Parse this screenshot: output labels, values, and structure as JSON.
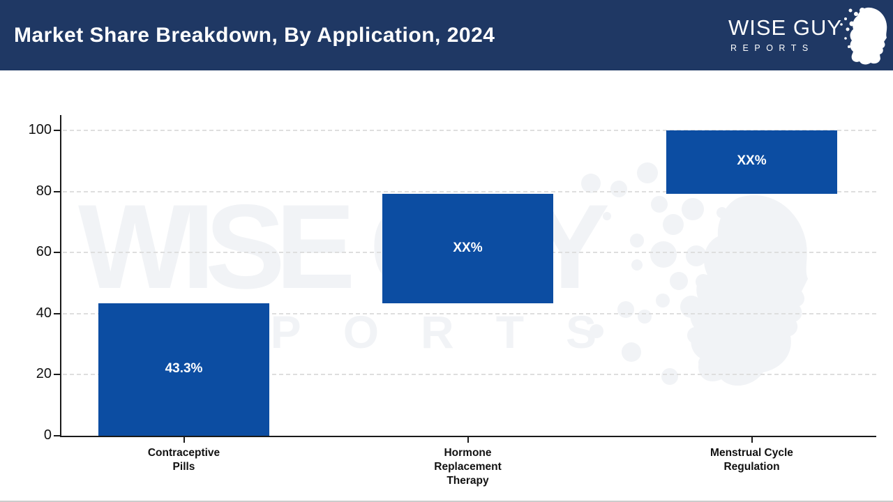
{
  "header": {
    "title": "Market Share Breakdown, By Application, 2024",
    "logo": {
      "line1": "WISE GUY",
      "line2": "REPORTS"
    }
  },
  "watermark": {
    "line1": "WISE GUY",
    "line2": "REPORTS"
  },
  "chart_data": {
    "type": "bar",
    "subtype": "waterfall-floating-bars",
    "title": "Market Share Breakdown, By Application, 2024",
    "categories": [
      [
        "Contraceptive",
        "Pills"
      ],
      [
        "Hormone",
        "Replacement",
        "Therapy"
      ],
      [
        "Menstrual Cycle",
        "Regulation"
      ]
    ],
    "values": [
      43.3,
      36.0,
      20.7
    ],
    "segment_start": [
      0,
      43.3,
      79.3
    ],
    "segment_end": [
      43.3,
      79.3,
      100
    ],
    "bar_labels": [
      "43.3%",
      "XX%",
      "XX%"
    ],
    "xlabel": "",
    "ylabel": "",
    "ylim": [
      0,
      100
    ],
    "yticks": [
      0,
      20,
      40,
      60,
      80,
      100
    ],
    "grid": "horizontal-dashed",
    "legend": "none",
    "bar_color": "#0C4DA2",
    "bar_label_color": "#FFFFFF",
    "axis_color": "#1A1A1A",
    "grid_color": "#DEDEDE"
  },
  "colors": {
    "header_bg": "#1F3864",
    "watermark": "#F1F3F6",
    "background": "#FFFFFF",
    "bottom_rule": "#CCCCCC"
  }
}
